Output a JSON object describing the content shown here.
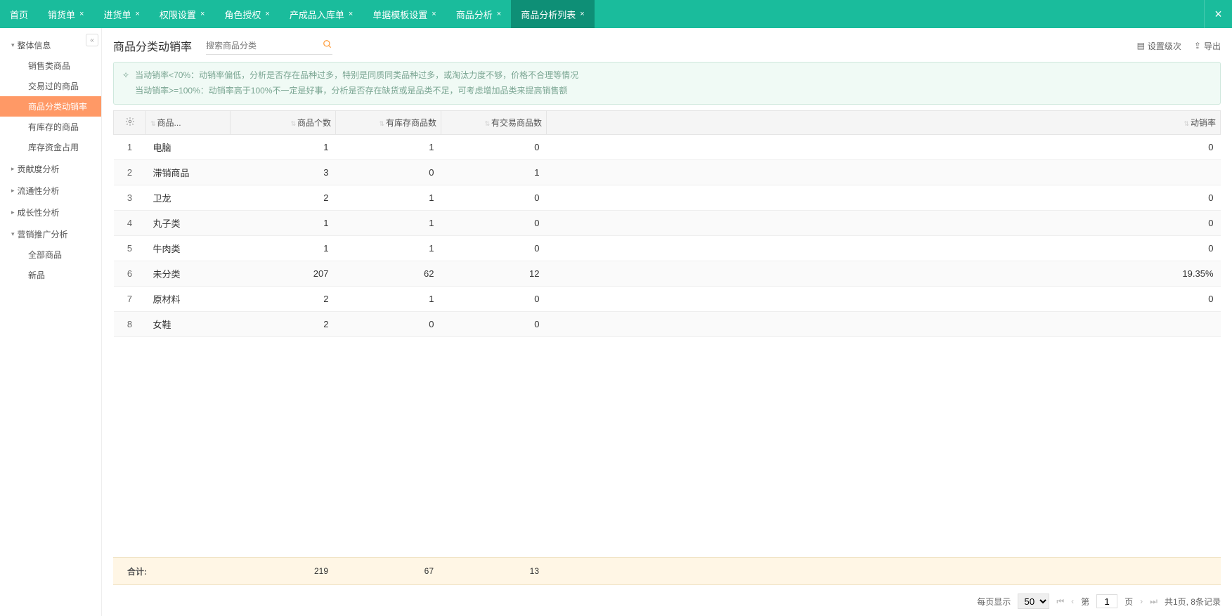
{
  "tabs": [
    {
      "label": "首页",
      "closable": false,
      "active": false
    },
    {
      "label": "销货单",
      "closable": true,
      "active": false
    },
    {
      "label": "进货单",
      "closable": true,
      "active": false
    },
    {
      "label": "权限设置",
      "closable": true,
      "active": false
    },
    {
      "label": "角色授权",
      "closable": true,
      "active": false
    },
    {
      "label": "产成品入库单",
      "closable": true,
      "active": false
    },
    {
      "label": "单据模板设置",
      "closable": true,
      "active": false
    },
    {
      "label": "商品分析",
      "closable": true,
      "active": false
    },
    {
      "label": "商品分析列表",
      "closable": true,
      "active": true
    }
  ],
  "sidebar": {
    "groups": [
      {
        "title": "整体信息",
        "expanded": true,
        "items": [
          {
            "label": "销售类商品",
            "active": false
          },
          {
            "label": "交易过的商品",
            "active": false
          },
          {
            "label": "商品分类动销率",
            "active": true
          },
          {
            "label": "有库存的商品",
            "active": false
          },
          {
            "label": "库存资金占用",
            "active": false
          }
        ]
      },
      {
        "title": "贡献度分析",
        "expanded": false,
        "items": []
      },
      {
        "title": "流通性分析",
        "expanded": false,
        "items": []
      },
      {
        "title": "成长性分析",
        "expanded": false,
        "items": []
      },
      {
        "title": "营销推广分析",
        "expanded": true,
        "items": [
          {
            "label": "全部商品",
            "active": false
          },
          {
            "label": "新品",
            "active": false
          }
        ]
      }
    ]
  },
  "page": {
    "title": "商品分类动销率",
    "search_placeholder": "搜索商品分类",
    "action_level": "设置级次",
    "action_export": "导出"
  },
  "tip": {
    "line1": "当动销率<70%：动销率偏低，分析是否存在品种过多，特别是同质同类品种过多，或淘汰力度不够，价格不合理等情况",
    "line2": "当动销率>=100%：动销率高于100%不一定是好事，分析是否存在缺货或是品类不足，可考虑增加品类来提高销售额"
  },
  "table": {
    "columns": {
      "cat": "商品...",
      "count": "商品个数",
      "stock": "有库存商品数",
      "trade": "有交易商品数",
      "rate": "动销率"
    },
    "rows": [
      {
        "idx": "1",
        "cat": "电脑",
        "count": "1",
        "stock": "1",
        "trade": "0",
        "rate": "0"
      },
      {
        "idx": "2",
        "cat": "滞销商品",
        "count": "3",
        "stock": "0",
        "trade": "1",
        "rate": ""
      },
      {
        "idx": "3",
        "cat": "卫龙",
        "count": "2",
        "stock": "1",
        "trade": "0",
        "rate": "0"
      },
      {
        "idx": "4",
        "cat": "丸子类",
        "count": "1",
        "stock": "1",
        "trade": "0",
        "rate": "0"
      },
      {
        "idx": "5",
        "cat": "牛肉类",
        "count": "1",
        "stock": "1",
        "trade": "0",
        "rate": "0"
      },
      {
        "idx": "6",
        "cat": "未分类",
        "count": "207",
        "stock": "62",
        "trade": "12",
        "rate": "19.35%"
      },
      {
        "idx": "7",
        "cat": "原材料",
        "count": "2",
        "stock": "1",
        "trade": "0",
        "rate": "0"
      },
      {
        "idx": "8",
        "cat": "女鞋",
        "count": "2",
        "stock": "0",
        "trade": "0",
        "rate": ""
      }
    ],
    "total": {
      "label": "合计:",
      "count": "219",
      "stock": "67",
      "trade": "13"
    }
  },
  "pager": {
    "per_page_label": "每页显示",
    "per_page_value": "50",
    "page_label_prefix": "第",
    "page_value": "1",
    "page_label_suffix": "页",
    "summary": "共1页, 8条记录"
  }
}
